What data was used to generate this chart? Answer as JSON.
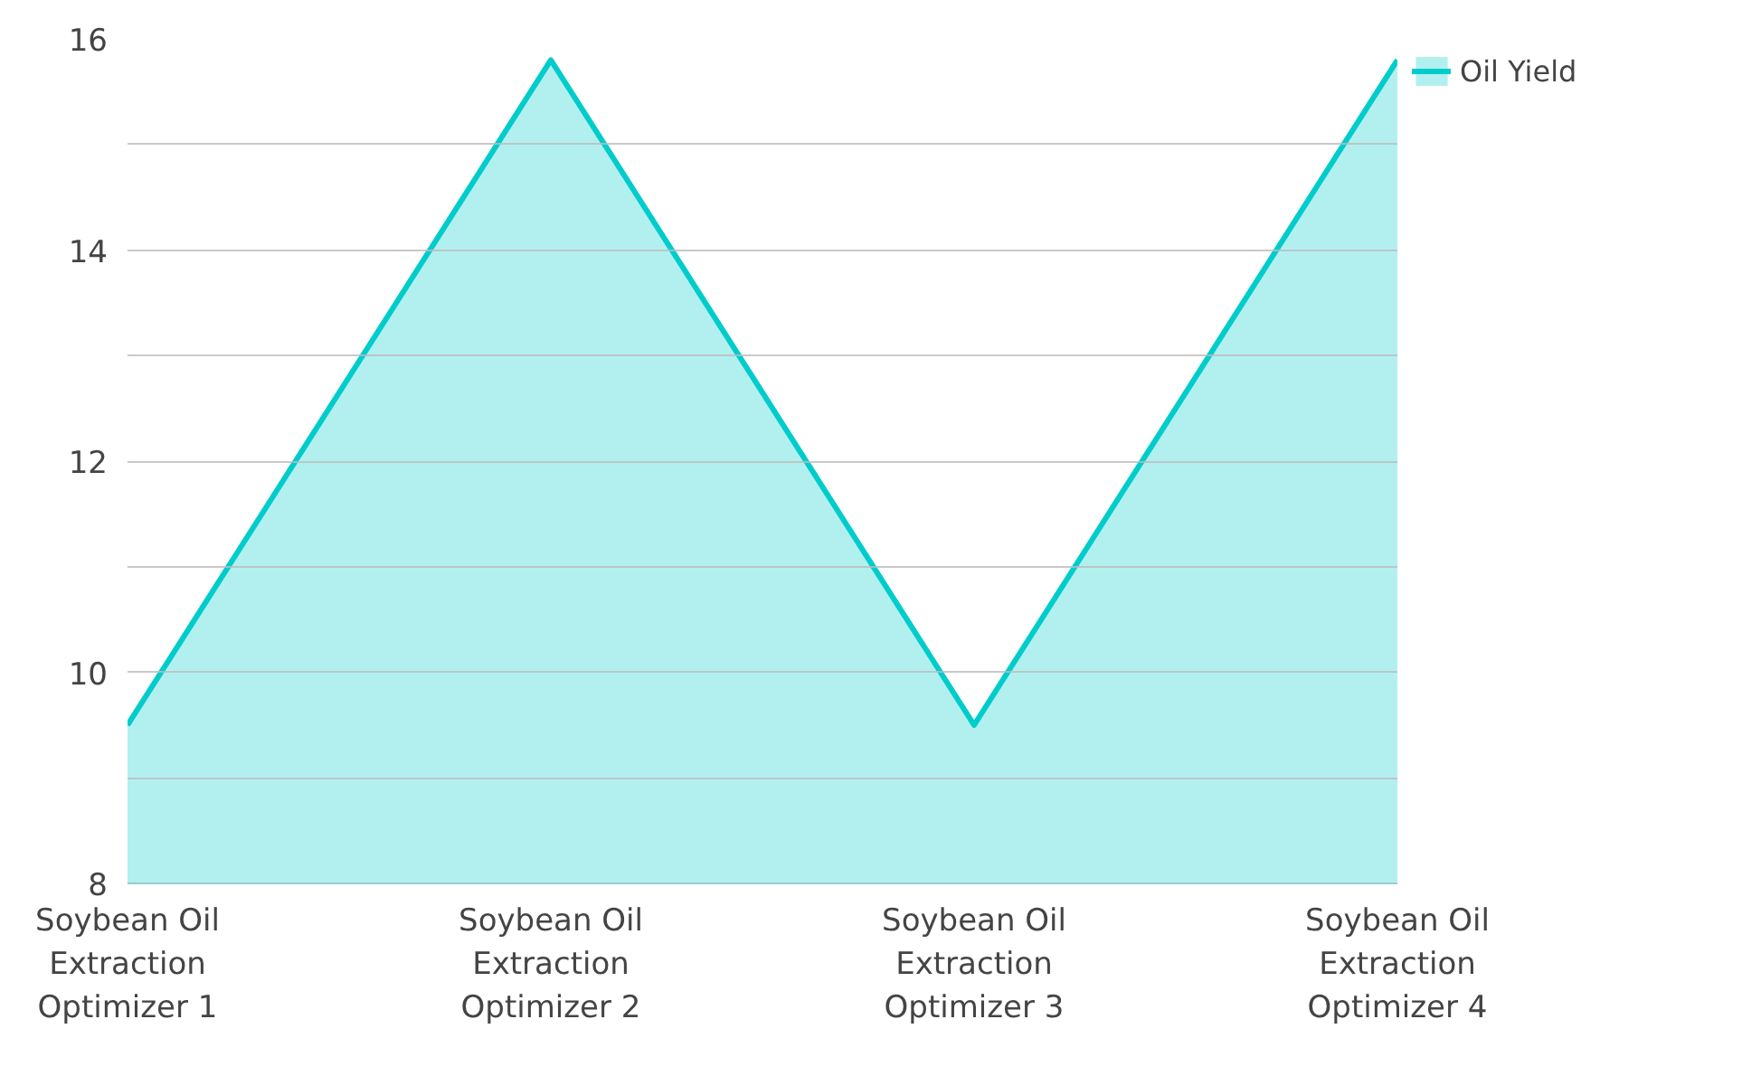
{
  "chart_data": {
    "type": "area",
    "categories": [
      "Soybean Oil Extraction Optimizer 1",
      "Soybean Oil Extraction Optimizer 2",
      "Soybean Oil Extraction Optimizer 3",
      "Soybean Oil Extraction Optimizer 4"
    ],
    "series": [
      {
        "name": "Oil Yield",
        "color": "#00cccc",
        "values": [
          9.5,
          15.8,
          9.5,
          15.8
        ]
      }
    ],
    "ylim": [
      8,
      16
    ],
    "yticks": [
      8,
      {
        "value": 9,
        "label": null
      },
      10,
      {
        "value": 11,
        "label": null
      },
      12,
      {
        "value": 13,
        "label": null
      },
      14,
      {
        "value": 15,
        "label": null
      },
      16
    ],
    "grid": "y",
    "legend": "top right",
    "marker": "none"
  }
}
